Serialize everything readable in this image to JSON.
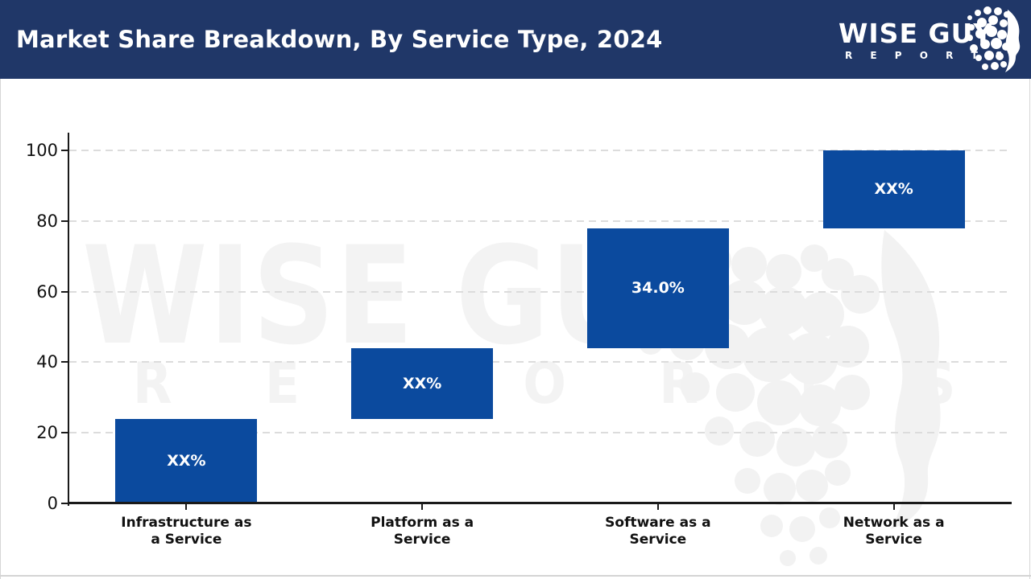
{
  "header": {
    "title": "Market Share Breakdown, By Service Type, 2024",
    "logo_line1": "WISE GUY",
    "logo_line2": "R E P O R T S"
  },
  "watermark": {
    "line1": "WISE GUY",
    "line2": "R E P O R T S"
  },
  "colors": {
    "header_bg": "#203768",
    "bar": "#0b4a9e",
    "grid": "#dcdcdc",
    "axis": "#1a1a1a",
    "watermark": "#f3f3f3"
  },
  "chart_data": {
    "type": "bar",
    "subtype": "floating-waterfall-segments",
    "title": "Market Share Breakdown, By Service Type, 2024",
    "xlabel": "",
    "ylabel": "",
    "ylim": [
      0,
      105
    ],
    "yticks": [
      0,
      20,
      40,
      60,
      80,
      100
    ],
    "grid": "horizontal-dashed",
    "legend": "none",
    "categories": [
      [
        "Infrastructure as",
        "a Service"
      ],
      [
        "Platform as a",
        "Service"
      ],
      [
        "Software as a",
        "Service"
      ],
      [
        "Network as a",
        "Service"
      ]
    ],
    "segments": [
      {
        "category": "Infrastructure as a Service",
        "start": 0,
        "end": 24,
        "value_label": "XX%"
      },
      {
        "category": "Platform as a Service",
        "start": 24,
        "end": 44,
        "value_label": "XX%"
      },
      {
        "category": "Software as a Service",
        "start": 44,
        "end": 78,
        "value_label": "34.0%"
      },
      {
        "category": "Network as a Service",
        "start": 78,
        "end": 100,
        "value_label": "XX%"
      }
    ]
  }
}
